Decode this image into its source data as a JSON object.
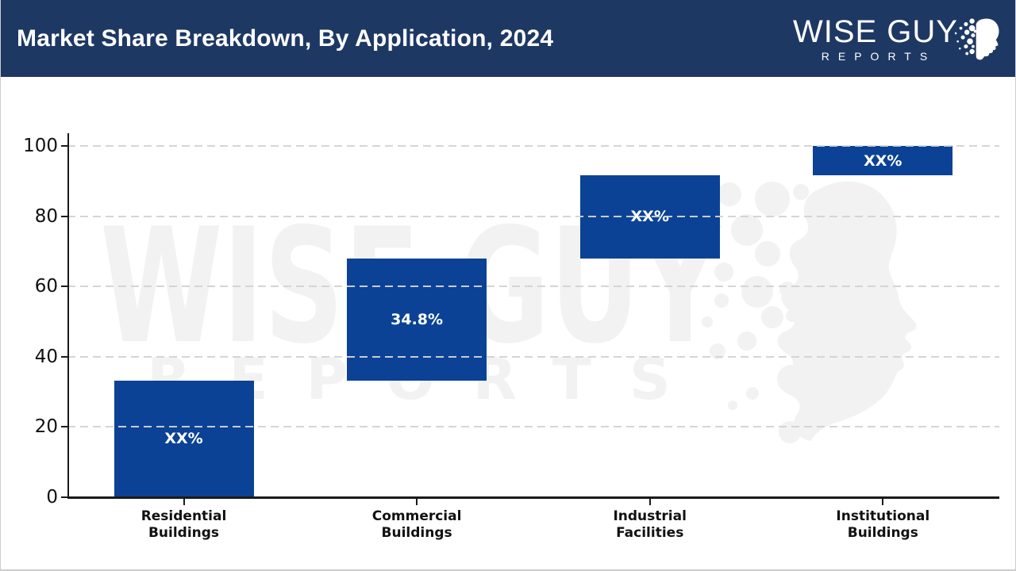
{
  "header": {
    "title": "Market Share Breakdown, By Application, 2024",
    "logo": {
      "name": "WISE GUY",
      "subtitle": "REPORTS"
    }
  },
  "watermark": {
    "line1": "WISE GUY",
    "line2": "REPORTS"
  },
  "colors": {
    "header_bg": "#1e3864",
    "bar_blue": "#0b4296",
    "axis": "#1a1a1a",
    "grid": "#d3d3d3",
    "watermark": "#f2f2f2",
    "bar_label_text": "#ffffff",
    "tick_text": "#111111"
  },
  "chart_data": {
    "type": "bar",
    "subtype": "waterfall",
    "title": "Market Share Breakdown, By Application, 2024",
    "categories": [
      "Residential Buildings",
      "Commercial Buildings",
      "Industrial Facilities",
      "Institutional Buildings"
    ],
    "segments": [
      {
        "category": "Residential Buildings",
        "label": "XX%",
        "start": 0,
        "end": 33.2
      },
      {
        "category": "Commercial Buildings",
        "label": "34.8%",
        "start": 33.2,
        "end": 68.0
      },
      {
        "category": "Industrial Facilities",
        "label": "XX%",
        "start": 68.0,
        "end": 91.6
      },
      {
        "category": "Institutional Buildings",
        "label": "XX%",
        "start": 91.6,
        "end": 100.0
      }
    ],
    "xlabel": "",
    "ylabel": "",
    "ylim": [
      0,
      100
    ],
    "yticks": [
      0,
      20,
      40,
      60,
      80,
      100
    ],
    "bar_color": "#0b4296",
    "grid": "horizontal-dashed",
    "legend": "none"
  }
}
